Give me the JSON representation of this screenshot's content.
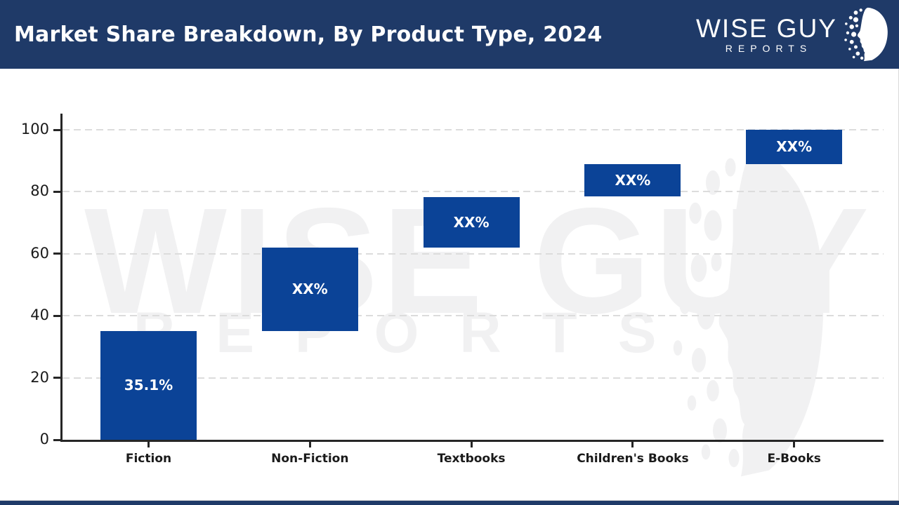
{
  "header": {
    "title": "Market Share Breakdown, By Product Type, 2024",
    "bg_color": "#1f3a68",
    "logo": {
      "line1": "WISE GUY",
      "line2": "REPORTS"
    }
  },
  "watermark": {
    "line1": "WISE GUY",
    "line2": "REPORTS"
  },
  "chart_data": {
    "type": "bar",
    "subtype": "waterfall-floating-bars",
    "title": "Market Share Breakdown, By Product Type, 2024",
    "categories": [
      "Fiction",
      "Non-Fiction",
      "Textbooks",
      "Children's Books",
      "E-Books"
    ],
    "segments": [
      {
        "category": "Fiction",
        "start": 0,
        "end": 35.1,
        "label": "35.1%"
      },
      {
        "category": "Non-Fiction",
        "start": 35.1,
        "end": 62.0,
        "label": "XX%"
      },
      {
        "category": "Textbooks",
        "start": 62.0,
        "end": 78.2,
        "label": "XX%"
      },
      {
        "category": "Children's Books",
        "start": 78.4,
        "end": 88.9,
        "label": "XX%"
      },
      {
        "category": "E-Books",
        "start": 89.0,
        "end": 100.0,
        "label": "XX%"
      }
    ],
    "yticks": [
      0,
      20,
      40,
      60,
      80,
      100
    ],
    "ylim": [
      0,
      105
    ],
    "xlabel": "",
    "ylabel": "",
    "grid": "horizontal-dashed",
    "legend": "none",
    "bar_color": "#0b4397",
    "bar_label_color": "#ffffff",
    "axis_color": "#262626"
  }
}
